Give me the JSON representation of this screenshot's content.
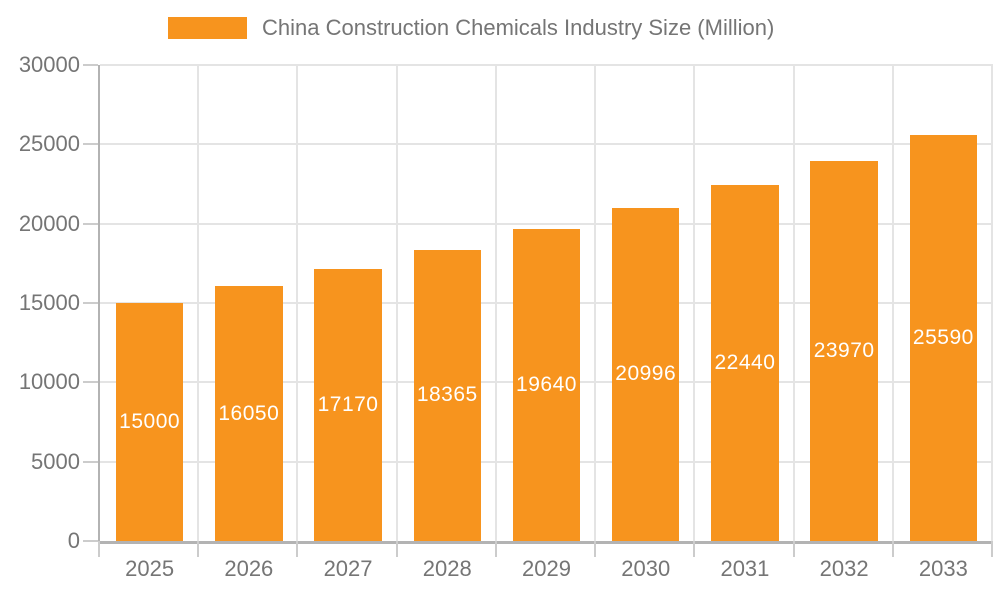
{
  "chart_data": {
    "type": "bar",
    "title": "China Construction Chemicals Industry Size (Million)",
    "series_name": "China Construction Chemicals Industry Size (Million)",
    "categories": [
      "2025",
      "2026",
      "2027",
      "2028",
      "2029",
      "2030",
      "2031",
      "2032",
      "2033"
    ],
    "values": [
      15000,
      16050,
      17170,
      18365,
      19640,
      20996,
      22440,
      23970,
      25590
    ],
    "xlabel": "",
    "ylabel": "",
    "ylim": [
      0,
      30000
    ],
    "ytick_step": 5000,
    "ytick_labels": [
      "0",
      "5000",
      "10000",
      "15000",
      "20000",
      "25000",
      "30000"
    ],
    "legend_position": "top",
    "grid": "on",
    "data_labels_position": "inside-center",
    "colors": {
      "bar": "#F7941E",
      "data_label": "#ffffff",
      "axis_text": "#757575",
      "legend_text": "#757575",
      "grid_line": "#e4e4e4",
      "axis_line": "#b3b3b3",
      "tick_line": "#cccccc",
      "background": "#ffffff"
    }
  }
}
